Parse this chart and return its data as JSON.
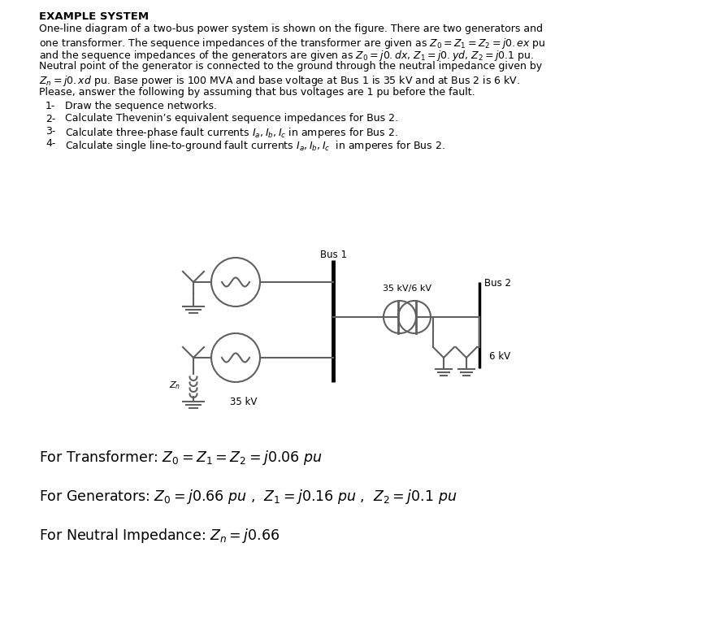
{
  "title": "EXAMPLE SYSTEM",
  "body_lines": [
    "One-line diagram of a two-bus power system is shown on the figure. There are two generators and",
    "one transformer. The sequence impedances of the transformer are given as $Z_0 = Z_1 = Z_2 = j0.ex$ pu",
    "and the sequence impedances of the generators are given as $Z_0 = j0.dx$, $Z_1 = j0.yd$, $Z_2 = j0.1$ pu.",
    "Neutral point of the generator is connected to the ground through the neutral impedance given by",
    "$Z_n = j0.xd$ pu. Base power is 100 MVA and base voltage at Bus 1 is 35 kV and at Bus 2 is 6 kV.",
    "Please, answer the following by assuming that bus voltages are 1 pu before the fault."
  ],
  "list_nums": [
    "1-",
    "2-",
    "3-",
    "4-"
  ],
  "list_items": [
    "Draw the sequence networks.",
    "Calculate Thevenin’s equivalent sequence impedances for Bus 2.",
    "Calculate three-phase fault currents $I_a, I_b, I_c$ in amperes for Bus 2.",
    "Calculate single line-to-ground fault currents $I_a, I_b, I_c$  in amperes for Bus 2."
  ],
  "formula1": "For Transformer: $Z_0 = Z_1 = Z_2 = j0.06\\ pu$",
  "formula2": "For Generators: $Z_0 = j0.66\\ pu$ ,  $Z_1 = j0.16\\ pu$ ,  $Z_2 = j0.1\\ pu$",
  "formula3": "For Neutral Impedance: $Z_n = j0.66$",
  "bg_color": "#ffffff",
  "gray": "#606060"
}
